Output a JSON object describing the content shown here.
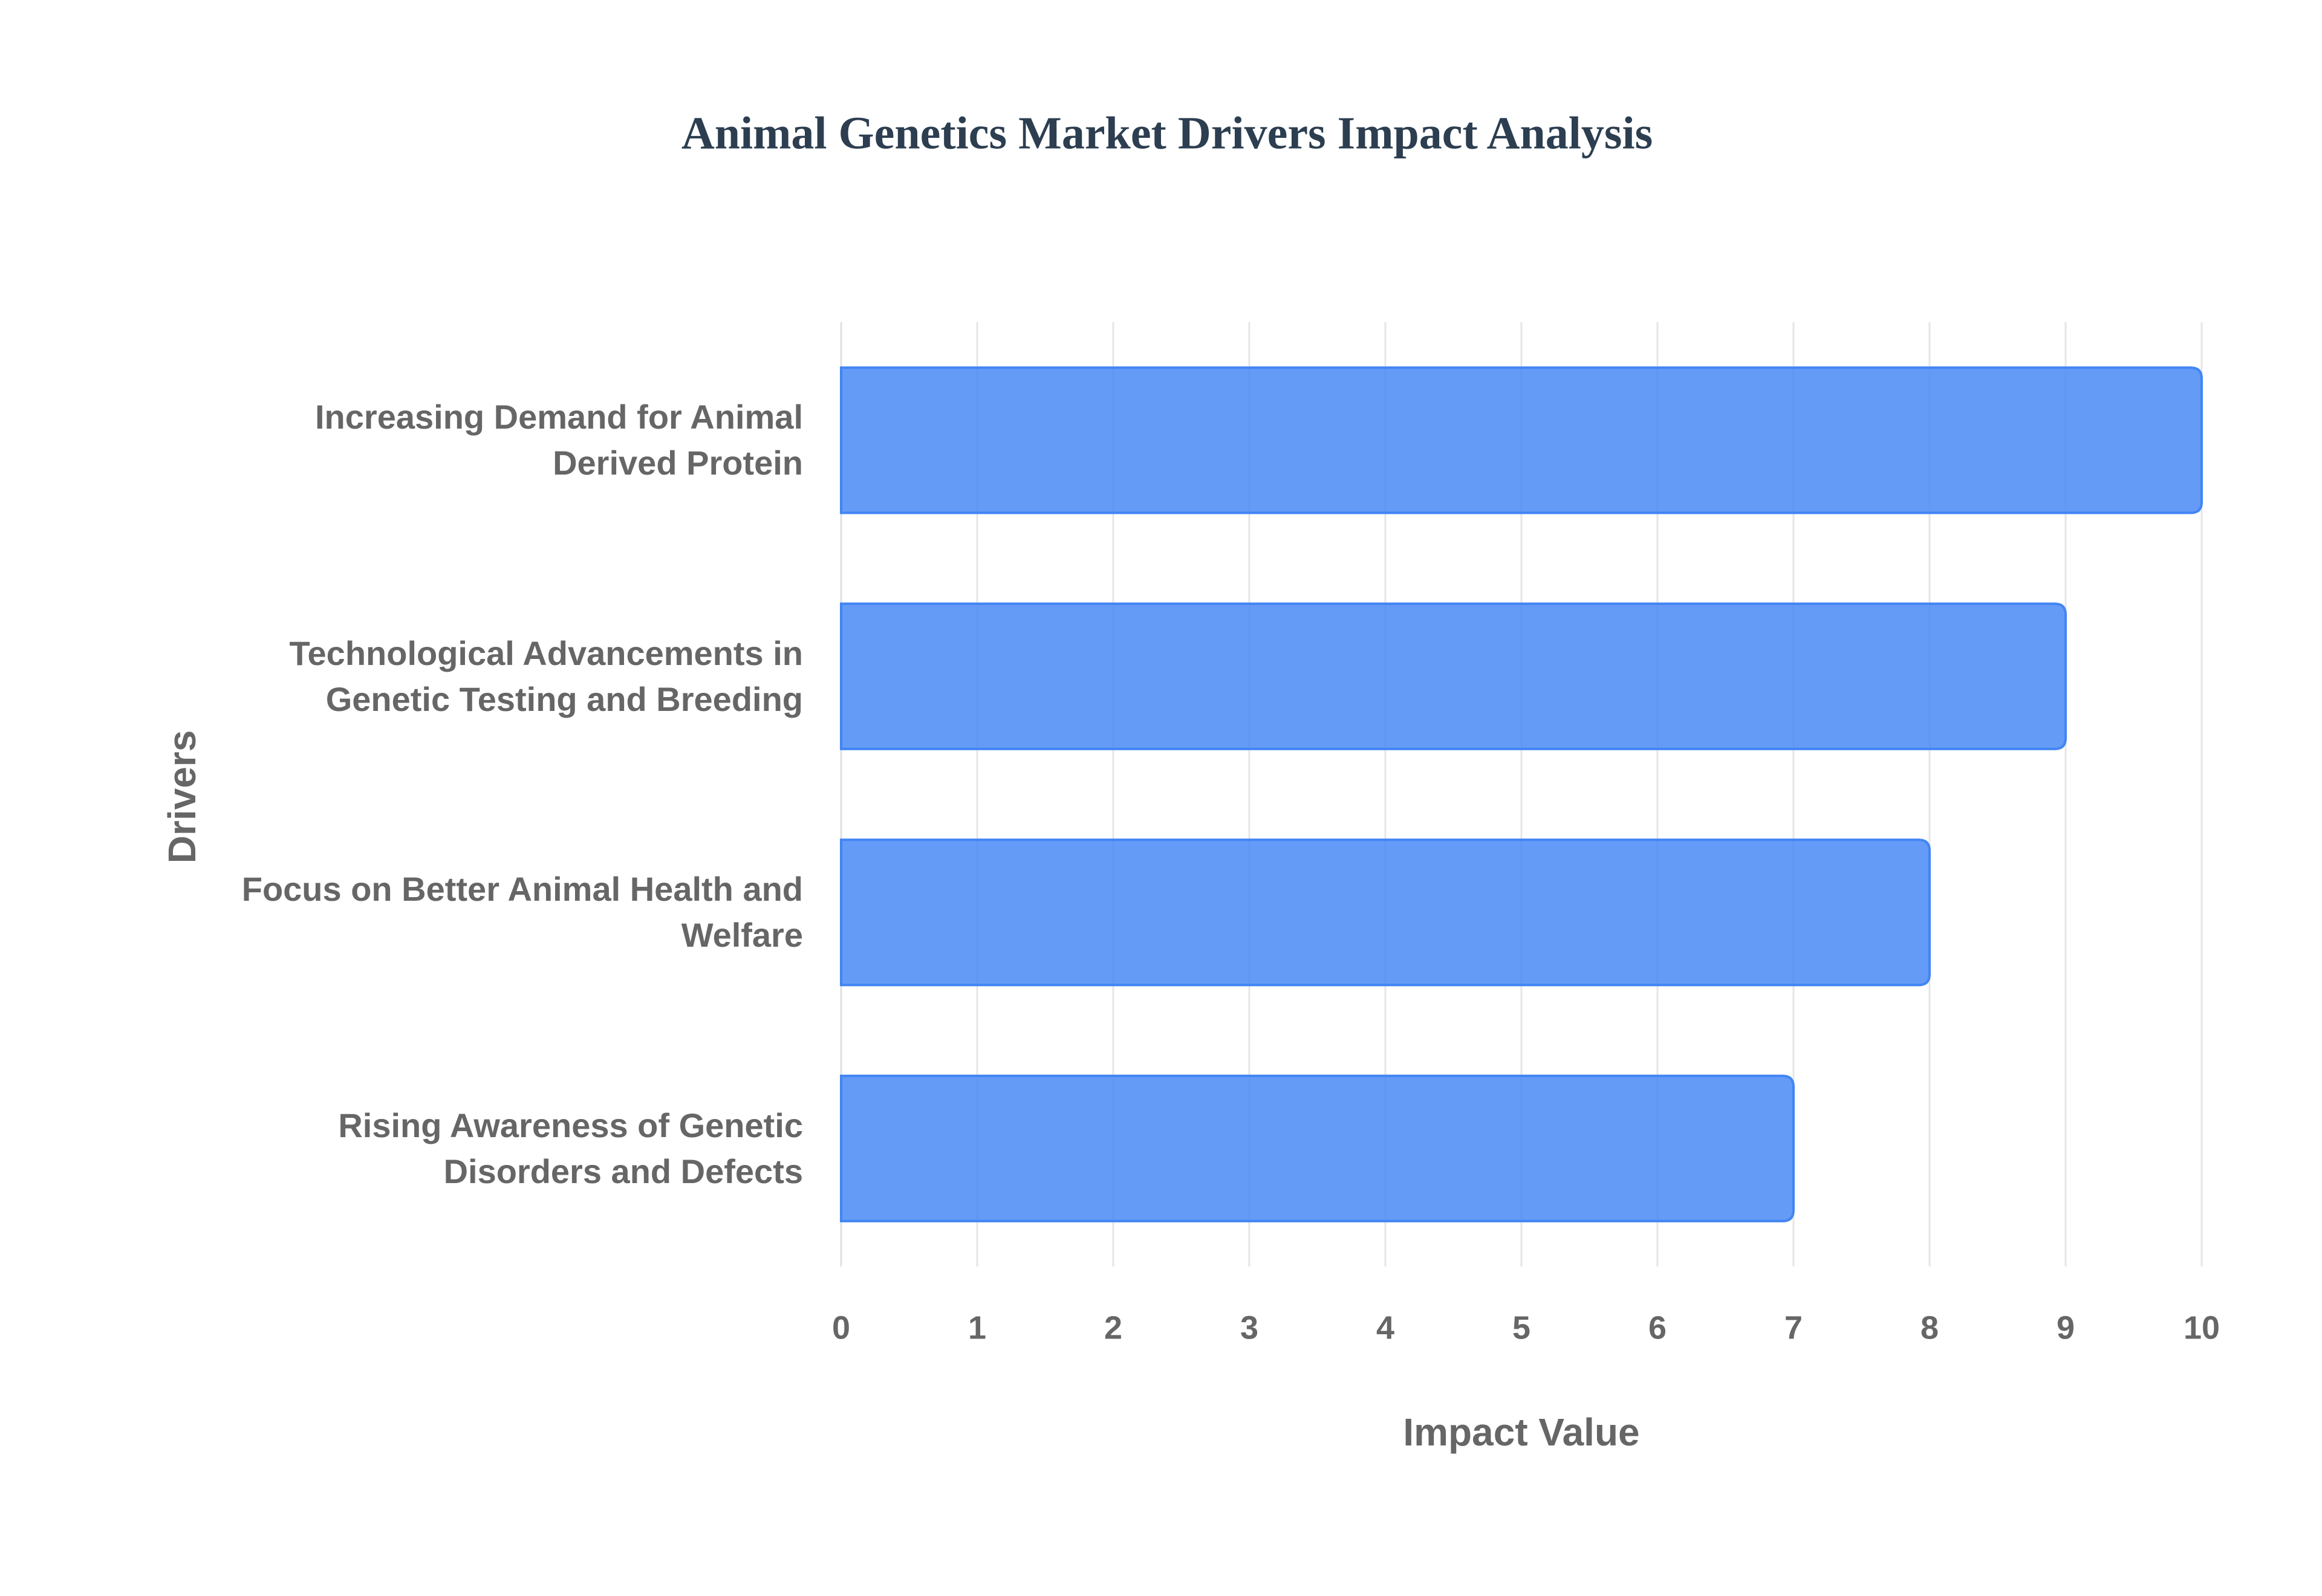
{
  "chart_data": {
    "type": "bar",
    "orientation": "horizontal",
    "title": "Animal Genetics Market Drivers Impact Analysis",
    "x_label": "Impact Value",
    "y_label": "Drivers",
    "categories": [
      "Increasing Demand for Animal Derived Protein",
      "Technological Advancements in Genetic Testing and Breeding",
      "Focus on Better Animal Health and Welfare",
      "Rising Awareness of Genetic Disorders and Defects"
    ],
    "values": [
      10,
      9,
      8,
      7
    ],
    "color": "#4285f4",
    "xlim": [
      0,
      10
    ],
    "xticks": [
      0,
      1,
      2,
      3,
      4,
      5,
      6,
      7,
      8,
      9,
      10
    ],
    "grid": true
  }
}
